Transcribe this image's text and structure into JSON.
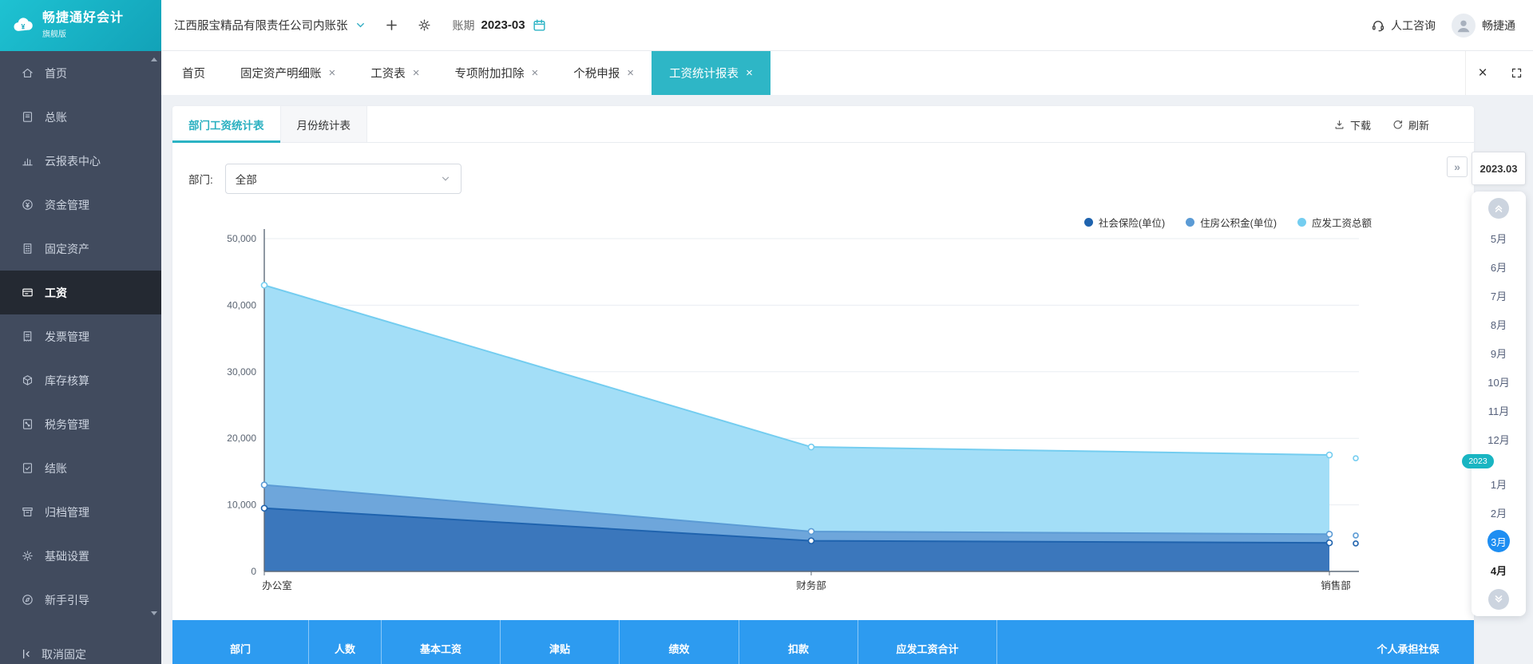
{
  "header": {
    "app_name": "畅捷通好会计",
    "edition": "旗舰版",
    "account_set": "江西服宝精品有限责任公司内账张",
    "period_label": "账期",
    "period_value": "2023-03",
    "consult_label": "人工咨询",
    "user_name": "畅捷通"
  },
  "sidebar": {
    "items": [
      {
        "key": "home",
        "label": "首页",
        "icon": "home-icon",
        "active": false
      },
      {
        "key": "general-ledger",
        "label": "总账",
        "icon": "ledger-icon",
        "active": false
      },
      {
        "key": "cloud-report-center",
        "label": "云报表中心",
        "icon": "cloud-report-icon",
        "active": false
      },
      {
        "key": "funds",
        "label": "资金管理",
        "icon": "funds-icon",
        "active": false
      },
      {
        "key": "fixed-assets",
        "label": "固定资产",
        "icon": "fixed-assets-icon",
        "active": false
      },
      {
        "key": "salary",
        "label": "工资",
        "icon": "salary-icon",
        "active": true
      },
      {
        "key": "invoice",
        "label": "发票管理",
        "icon": "invoice-icon",
        "active": false
      },
      {
        "key": "inventory",
        "label": "库存核算",
        "icon": "inventory-icon",
        "active": false
      },
      {
        "key": "tax",
        "label": "税务管理",
        "icon": "tax-icon",
        "active": false
      },
      {
        "key": "closing",
        "label": "结账",
        "icon": "closing-icon",
        "active": false
      },
      {
        "key": "archive",
        "label": "归档管理",
        "icon": "archive-icon",
        "active": false
      },
      {
        "key": "settings",
        "label": "基础设置",
        "icon": "settings-icon",
        "active": false
      },
      {
        "key": "guide",
        "label": "新手引导",
        "icon": "guide-icon",
        "active": false
      }
    ],
    "unpin_label": "取消固定"
  },
  "tabs": [
    {
      "key": "home",
      "label": "首页",
      "closable": false,
      "active": false
    },
    {
      "key": "fixed-asset-ledger",
      "label": "固定资产明细账",
      "closable": true,
      "active": false
    },
    {
      "key": "salary-sheet",
      "label": "工资表",
      "closable": true,
      "active": false
    },
    {
      "key": "special-deduction",
      "label": "专项附加扣除",
      "closable": true,
      "active": false
    },
    {
      "key": "personal-tax-filing",
      "label": "个税申报",
      "closable": true,
      "active": false
    },
    {
      "key": "salary-report",
      "label": "工资统计报表",
      "closable": true,
      "active": true
    }
  ],
  "report": {
    "subtabs": [
      {
        "key": "department-report",
        "label": "部门工资统计表",
        "active": true
      },
      {
        "key": "month-report",
        "label": "月份统计表",
        "active": false
      }
    ],
    "download_label": "下载",
    "refresh_label": "刷新",
    "filter_label": "部门:",
    "filter_value": "全部"
  },
  "chart_data": {
    "type": "area",
    "categories": [
      "办公室",
      "财务部",
      "销售部"
    ],
    "series": [
      {
        "name": "社会保险(单位)",
        "values": [
          9500,
          4600,
          4300
        ],
        "edge_value": 4200,
        "color": "#1f63ae",
        "fill": "#3b77bc"
      },
      {
        "name": "住房公积金(单位)",
        "values": [
          13000,
          6000,
          5600
        ],
        "edge_value": 5400,
        "color": "#5b9bd5",
        "fill": "#6ea6db"
      },
      {
        "name": "应发工资总额",
        "values": [
          43000,
          18700,
          17500
        ],
        "edge_value": 17000,
        "color": "#74cdf0",
        "fill": "#a3def7"
      }
    ],
    "ylim": [
      0,
      50000
    ],
    "yticks": [
      0,
      10000,
      20000,
      30000,
      40000,
      50000
    ],
    "grid": true,
    "legend_position": "top-right"
  },
  "table": {
    "columns": [
      "部门",
      "人数",
      "基本工资",
      "津贴",
      "绩效",
      "扣款",
      "应发工资合计",
      "个人承担社保"
    ]
  },
  "month_panel": {
    "current": "2023.03",
    "items": [
      {
        "label": "5月"
      },
      {
        "label": "6月"
      },
      {
        "label": "7月"
      },
      {
        "label": "8月"
      },
      {
        "label": "9月"
      },
      {
        "label": "10月"
      },
      {
        "label": "11月"
      },
      {
        "label": "12月"
      },
      {
        "label": "2023",
        "type": "year"
      },
      {
        "label": "1月"
      },
      {
        "label": "2月"
      },
      {
        "label": "3月",
        "active": true
      },
      {
        "label": "4月",
        "emph": true
      }
    ]
  },
  "colors": {
    "brand_teal": "#1ec2d2",
    "active_tab_teal": "#2eb6c6",
    "sidebar_bg": "#414b5e",
    "table_header_blue": "#2d9bf0",
    "month_active_blue": "#1e8ef2"
  }
}
